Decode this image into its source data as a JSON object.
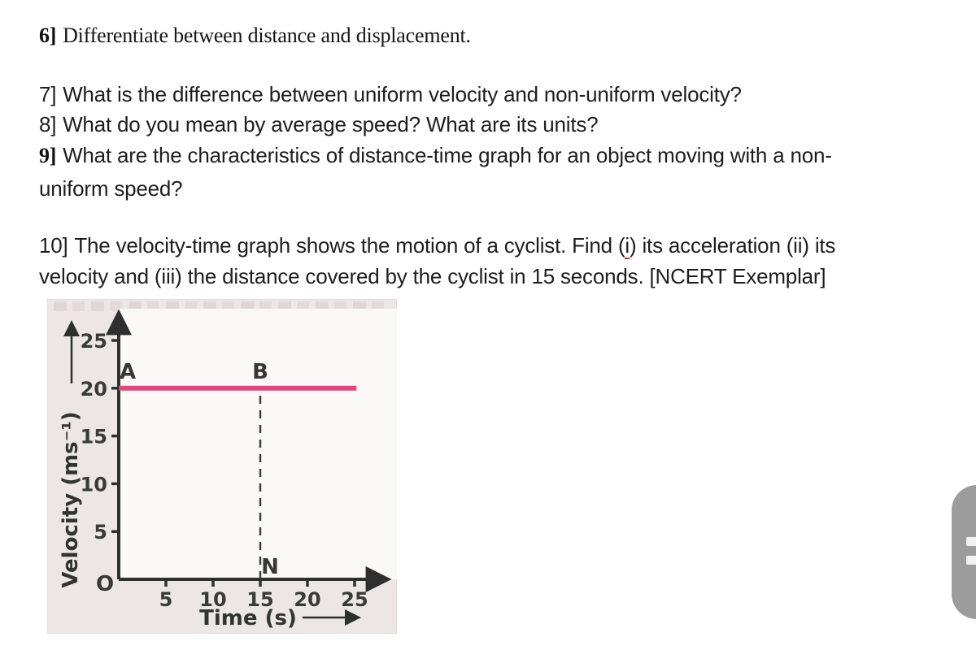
{
  "questions": {
    "q6": {
      "number": "6]",
      "text": "Differentiate between distance and displacement."
    },
    "q7": {
      "number": "7]",
      "text": "What is the difference between uniform velocity and non-uniform velocity?"
    },
    "q8": {
      "number": "8]",
      "text": "What do you mean by average speed? What are its units?"
    },
    "q9": {
      "number": "9]",
      "line1": "What are the characteristics of distance-time graph for an object moving with a non-",
      "line2": "uniform speed?"
    },
    "q10": {
      "number": "10]",
      "line1_pre": "The velocity-time graph shows the motion of a cyclist. Find (",
      "line1_marked": "i",
      "line1_post": ") its acceleration (ii) its",
      "line2": "velocity and (iii) the distance covered by the cyclist in 15 seconds. [NCERT Exemplar]"
    }
  },
  "chart_data": {
    "type": "line",
    "title": "",
    "xlabel": "Time (s)",
    "ylabel": "Velocity (ms⁻¹)",
    "x_ticks": [
      5,
      10,
      15,
      20,
      25
    ],
    "y_ticks": [
      5,
      10,
      15,
      20,
      25
    ],
    "xlim": [
      0,
      28
    ],
    "ylim": [
      0,
      28
    ],
    "grid": false,
    "legend": false,
    "series": [
      {
        "name": "cyclist-velocity",
        "color": "#e0487e",
        "x": [
          0,
          25.2
        ],
        "y": [
          20,
          20
        ],
        "description": "constant velocity of 20 ms-1 from A to B"
      }
    ],
    "points": [
      {
        "label": "A",
        "x": 0,
        "y": 20
      },
      {
        "label": "B",
        "x": 15,
        "y": 20
      },
      {
        "label": "N",
        "x": 15,
        "y": 0
      },
      {
        "label": "O",
        "x": 0,
        "y": 0
      }
    ],
    "guide": {
      "type": "vertical-dashed",
      "x": 15,
      "y_from": 0,
      "y_to": 20,
      "color": "#3f3f3f"
    }
  },
  "side_widget": {
    "color": "#9c9c9c",
    "icon": "menu-lines-icon"
  }
}
